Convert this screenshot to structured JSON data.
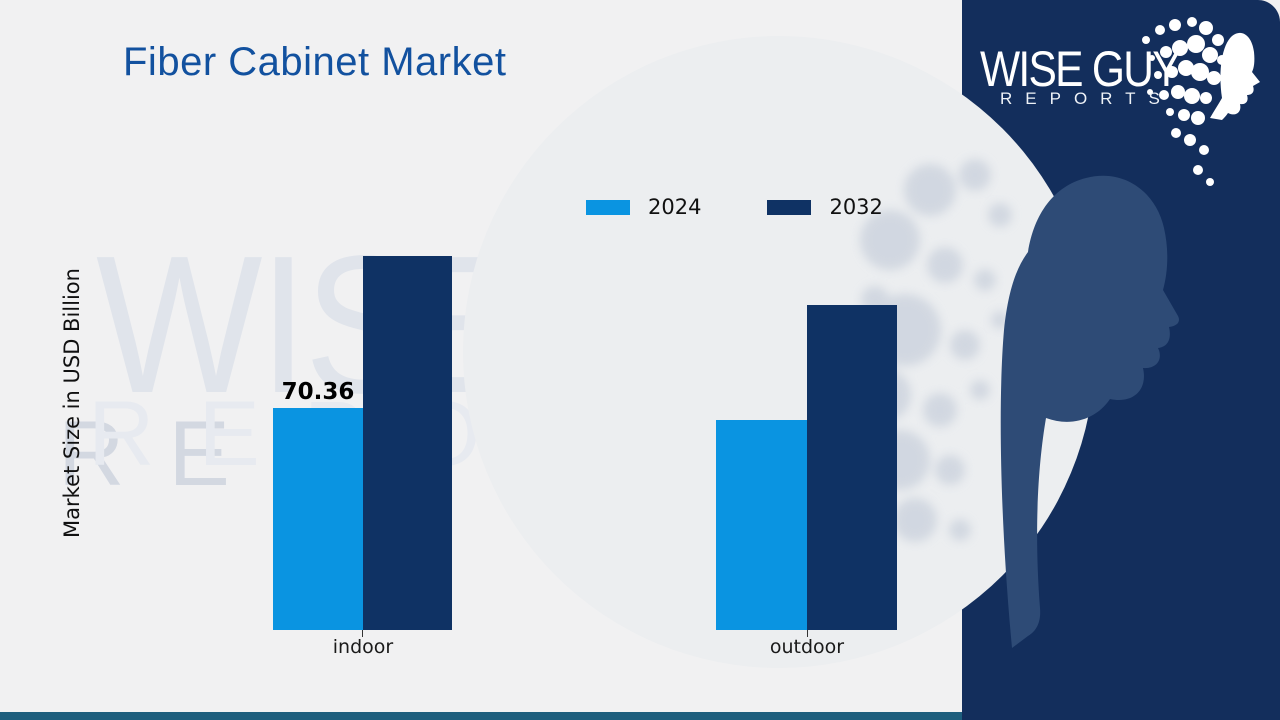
{
  "title": "Fiber Cabinet Market",
  "branding": {
    "logo_line1": "WISE GUY",
    "logo_line2": "REPORTS",
    "watermark_line1": "WISE GUY",
    "watermark_line2": "REPORTS"
  },
  "chart_data": {
    "type": "bar",
    "title": "Fiber Cabinet Market",
    "xlabel": "",
    "ylabel": "Market Size in USD Billion",
    "categories": [
      "indoor",
      "outdoor"
    ],
    "series": [
      {
        "name": "2024",
        "color": "#0a94e1",
        "values": [
          70.36,
          66.5
        ]
      },
      {
        "name": "2032",
        "color": "#0f3264",
        "values": [
          118.6,
          103.0
        ]
      }
    ],
    "value_label": "70.36",
    "ylim": [
      0,
      130
    ],
    "grid": false,
    "legend_position": "top-center"
  },
  "colors": {
    "background": "#f1f1f2",
    "title_text": "#12519f",
    "bar_2024": "#0a94e1",
    "bar_2032": "#0f3264",
    "panel_navy": "#132e5c",
    "face_silhouette": "#2e4b76",
    "bottom_bar_teal": "#1d5e7d",
    "axis_text": "#1a1a1a",
    "watermark": "#e0e4eb"
  }
}
